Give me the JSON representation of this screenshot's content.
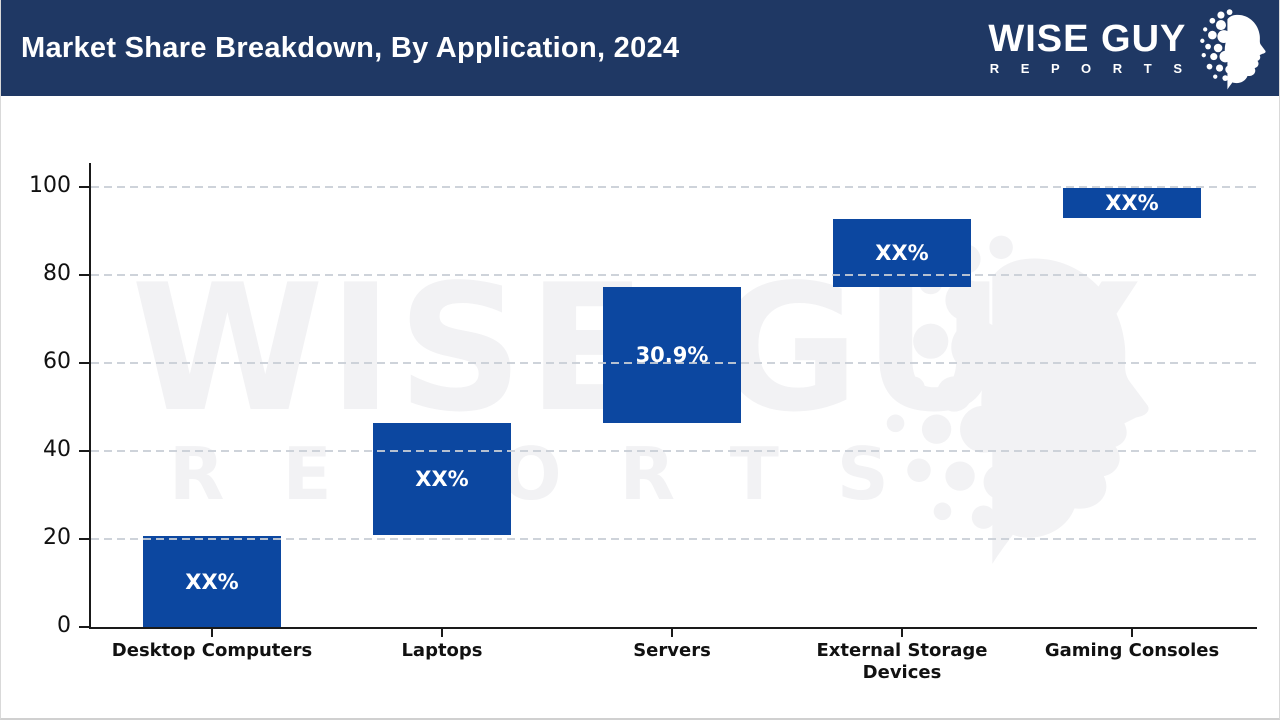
{
  "header": {
    "title": "Market Share Breakdown, By Application, 2024",
    "brand": {
      "line1": "WISE GUY",
      "line2": "R E P O R T S"
    }
  },
  "watermark": {
    "line1": "WISE GUY",
    "line2": "REPORTS"
  },
  "colors": {
    "header_bg": "#1f3864",
    "bar": "#0c47a0",
    "grid": "#c9ced6",
    "axis": "#1a1a1a",
    "bar_label_text": "#ffffff",
    "watermark": "#f2f2f4",
    "tick_text": "#111111"
  },
  "chart_data": {
    "type": "bar",
    "variant": "floating-waterfall-percent",
    "title": "Market Share Breakdown, By Application, 2024",
    "xlabel": "",
    "ylabel": "",
    "ylim": [
      0,
      100
    ],
    "yticks": [
      0,
      20,
      40,
      60,
      80,
      100
    ],
    "grid": "horizontal dashed, drawn over bars",
    "legend": "none",
    "categories": [
      "Desktop Computers",
      "Laptops",
      "Servers",
      "External Storage Devices",
      "Gaming Consoles"
    ],
    "bars": [
      {
        "category": "Desktop Computers",
        "start": 0,
        "end": 20.6,
        "size": 20.6,
        "label": "XX%"
      },
      {
        "category": "Laptops",
        "start": 20.9,
        "end": 46.4,
        "size": 25.5,
        "label": "XX%"
      },
      {
        "category": "Servers",
        "start": 46.4,
        "end": 77.3,
        "size": 30.9,
        "label": "30.9%"
      },
      {
        "category": "External Storage Devices",
        "start": 77.3,
        "end": 92.8,
        "size": 15.5,
        "label": "XX%"
      },
      {
        "category": "Gaming Consoles",
        "start": 92.9,
        "end": 99.8,
        "size": 6.9,
        "label": "XX%"
      }
    ]
  }
}
